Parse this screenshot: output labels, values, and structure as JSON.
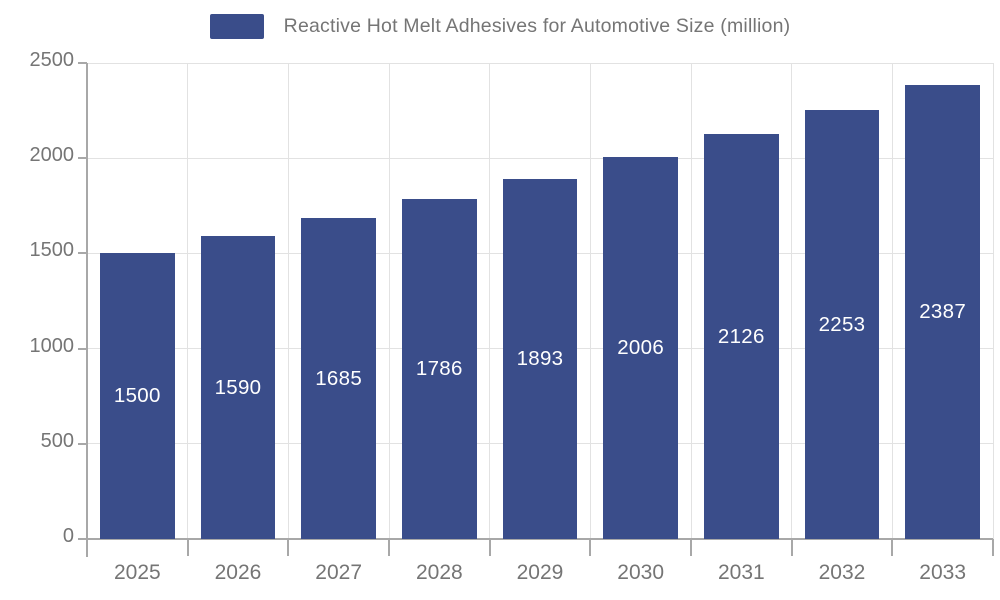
{
  "legend": {
    "label": "Reactive Hot Melt Adhesives for Automotive Size (million)"
  },
  "chart_data": {
    "type": "bar",
    "title": "Reactive Hot Melt Adhesives for Automotive Size (million)",
    "series_name": "Reactive Hot Melt Adhesives for Automotive Size (million)",
    "categories": [
      "2025",
      "2026",
      "2027",
      "2028",
      "2029",
      "2030",
      "2031",
      "2032",
      "2033"
    ],
    "values": [
      1500,
      1590,
      1685,
      1786,
      1893,
      2006,
      2126,
      2253,
      2387
    ],
    "yticks": [
      0,
      500,
      1000,
      1500,
      2000,
      2500
    ],
    "ylim": [
      0,
      2500
    ],
    "xlabel": "",
    "ylabel": "",
    "grid": true,
    "legend_position": "top",
    "bar_labels_inside": true,
    "colors": {
      "bar": "#3A4D8A",
      "bar_value_text": "#FFFFFF",
      "grid": "#E2E2E2",
      "axis": "#A8A8A8",
      "tick_text": "#757575",
      "legend_text": "#757575",
      "background": "#FFFFFF"
    }
  }
}
